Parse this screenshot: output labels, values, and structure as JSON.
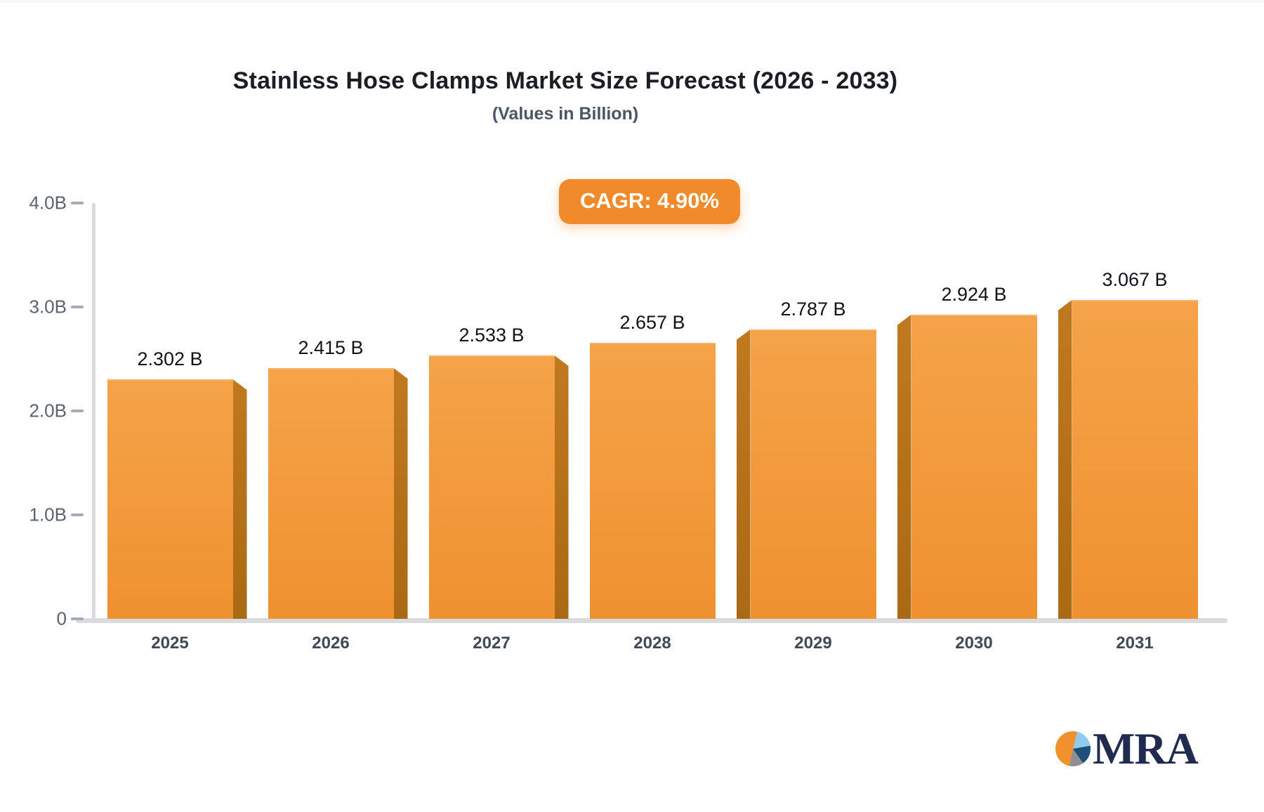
{
  "chart_data": {
    "type": "bar",
    "title": "Stainless Hose Clamps Market Size Forecast (2026 - 2033)",
    "subtitle": "(Values in Billion)",
    "cagr_label": "CAGR: 4.90%",
    "categories": [
      "2025",
      "2026",
      "2027",
      "2028",
      "2029",
      "2030",
      "2031"
    ],
    "values": [
      2.302,
      2.415,
      2.533,
      2.657,
      2.787,
      2.924,
      3.067
    ],
    "bar_labels": [
      "2.302 B",
      "2.415 B",
      "2.533 B",
      "2.657 B",
      "2.787 B",
      "2.924 B",
      "3.067 B"
    ],
    "xlabel": "",
    "ylabel": "",
    "ylim": [
      0,
      4.0
    ],
    "y_ticks": [
      {
        "label": "4.0B",
        "value": 4.0
      },
      {
        "label": "3.0B",
        "value": 3.0
      },
      {
        "label": "2.0B",
        "value": 2.0
      },
      {
        "label": "1.0B",
        "value": 1.0
      },
      {
        "label": "0",
        "value": 0
      }
    ],
    "grid": false,
    "legend": false,
    "colors": {
      "bar_top": "#f5a349",
      "bar_bottom": "#ef9130",
      "bar_side": "#b5701a",
      "badge_background": "#f18a2a",
      "badge_text": "#ffffff",
      "axis_line": "#d9dbdf",
      "tick_text": "#5b626e",
      "category_text": "#414956",
      "value_text": "#101317",
      "title_text": "#1b1e24",
      "subtitle_text": "#4b5563"
    }
  },
  "branding": {
    "logo_text": "MRA",
    "logo_text_color": "#212b50",
    "pie_slice_colors": [
      "#f0912d",
      "#8fcbec",
      "#1f4e79",
      "#8e8e93"
    ]
  }
}
